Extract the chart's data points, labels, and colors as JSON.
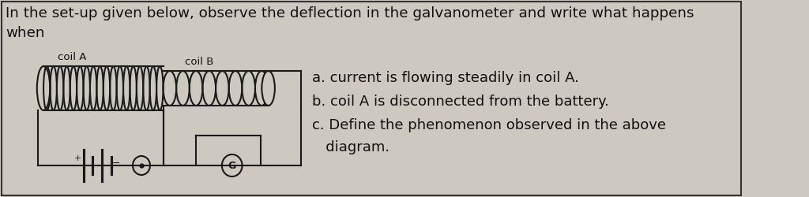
{
  "background_color": "#cdc8c0",
  "border_color": "#333333",
  "title_line1": "In the set-up given below, observe the deflection in the galvanometer and write what happens",
  "title_line2": "when",
  "opt_a": "a. current is flowing steadily in coil A.",
  "opt_b": "b. coil A is disconnected from the battery.",
  "opt_c1": "c. Define the phenomenon observed in the above",
  "opt_c2": "   diagram.",
  "coil_a_label": "coil A",
  "coil_b_label": "coil B",
  "text_color": "#111111",
  "diagram_color": "#1a1a1a",
  "title_fontsize": 13.2,
  "options_fontsize": 13.0,
  "label_fontsize": 9.5
}
